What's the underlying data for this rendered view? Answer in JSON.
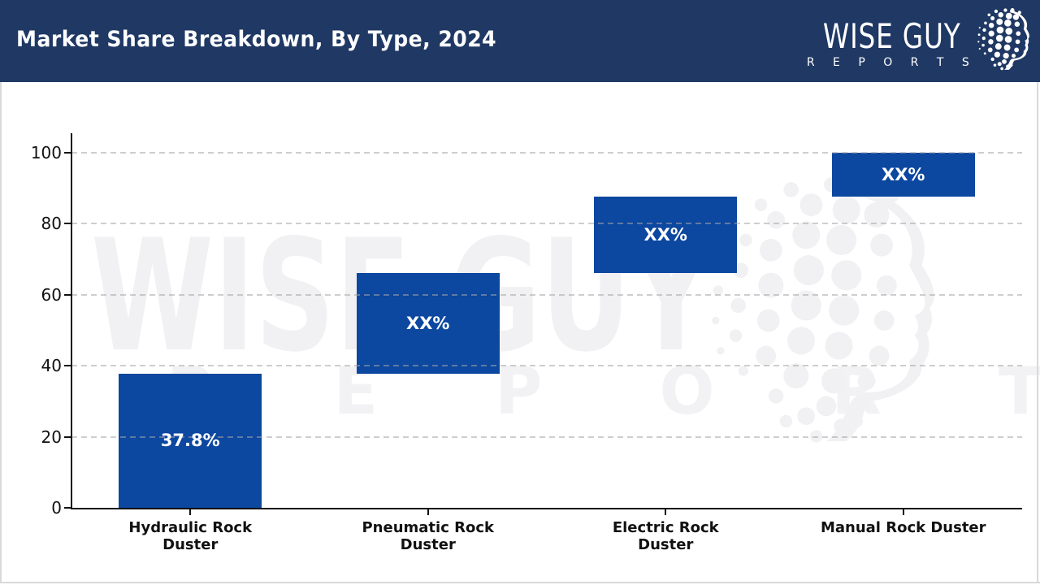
{
  "header": {
    "title": "Market Share Breakdown, By Type, 2024",
    "bg_color": "#1F3864",
    "logo": {
      "line1": "WISE GUY",
      "line2": "R E P O R T S",
      "face_icon": "dotted-head-profile"
    }
  },
  "watermark": {
    "line1": "WISE GUY",
    "line2": "R E P O R T S",
    "color": "#f1f1f4"
  },
  "chart_data": {
    "type": "bar",
    "subtype": "floating-segment-waterfall",
    "title": "Market Share Breakdown, By Type, 2024",
    "categories": [
      "Hydraulic Rock\nDuster",
      "Pneumatic Rock\nDuster",
      "Electric Rock\nDuster",
      "Manual Rock Duster"
    ],
    "bars": [
      {
        "category": "Hydraulic Rock\nDuster",
        "from": 0,
        "to": 37.8,
        "label": "37.8%"
      },
      {
        "category": "Pneumatic Rock\nDuster",
        "from": 37.8,
        "to": 66.1,
        "label": "XX%"
      },
      {
        "category": "Electric Rock\nDuster",
        "from": 66.1,
        "to": 87.5,
        "label": "XX%"
      },
      {
        "category": "Manual Rock Duster",
        "from": 87.5,
        "to": 100,
        "label": "XX%"
      }
    ],
    "ylabel": "",
    "xlabel": "",
    "ylim": [
      0,
      105
    ],
    "yticks": [
      0,
      20,
      40,
      60,
      80,
      100
    ],
    "grid": "horizontal-dashed",
    "legend": "none",
    "bar_color": "#0C47A0",
    "bar_label_color": "#FFFFFF",
    "axis_color": "#111111"
  }
}
